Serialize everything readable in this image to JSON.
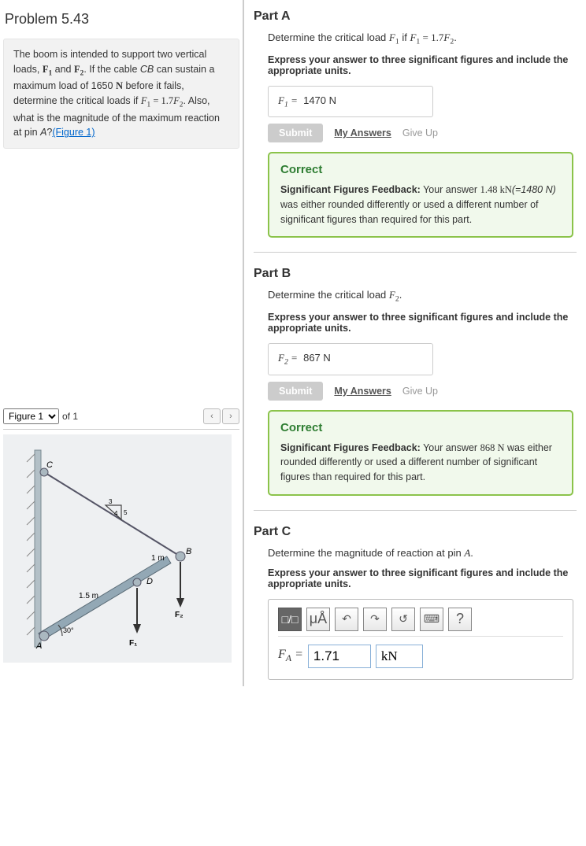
{
  "problem": {
    "title": "Problem 5.43",
    "description_html": "The boom is intended to support two vertical loads, <b class='serif'>F<span class='sub'>1</span></b> and <b class='serif'>F<span class='sub'>2</span></b>. If the cable <i>CB</i> can sustain a maximum load of 1650 <b class='serif'>N</b> before it fails, determine the critical loads if <span class='serif'><i>F</i><span class='sub'>1</span> = 1.7<i>F</i><span class='sub'>2</span></span>. Also, what is the magnitude of the maximum reaction at pin <i>A</i>?",
    "figure_link": "(Figure 1)"
  },
  "figure_selector": {
    "label": "Figure 1",
    "of_text": "of 1"
  },
  "figure": {
    "labels": {
      "C": "C",
      "A": "A",
      "B": "B",
      "D": "D",
      "one_m": "1 m",
      "one5_m": "1.5 m",
      "ang": "30°",
      "F1": "F₁",
      "F2": "F₂",
      "t3": "3",
      "t4": "4",
      "t5": "5"
    }
  },
  "partA": {
    "title": "Part A",
    "sub_html": "Determine the critical load <span class='serif'><i>F</i><span class='sub'>1</span></span> if <span class='serif'><i>F</i><span class='sub'>1</span> = 1.7<i>F</i><span class='sub'>2</span></span>.",
    "instr": "Express your answer to three significant figures and include the appropriate units.",
    "var_html": "<i>F</i><span class='sub'>1</span> =",
    "value": "1470 N",
    "submit": "Submit",
    "myans": "My Answers",
    "giveup": "Give Up",
    "fb_title": "Correct",
    "fb_body_html": "<b>Significant Figures Feedback:</b> Your answer <span class='serif'>1.48 kN</span><i>(=1480 N)</i> was either rounded differently or used a different number of significant figures than required for this part."
  },
  "partB": {
    "title": "Part B",
    "sub_html": "Determine the critical load <span class='serif'><i>F</i><span class='sub'>2</span></span>.",
    "instr": "Express your answer to three significant figures and include the appropriate units.",
    "var_html": "<i>F</i><span class='sub'>2</span> =",
    "value": "867 N",
    "submit": "Submit",
    "myans": "My Answers",
    "giveup": "Give Up",
    "fb_title": "Correct",
    "fb_body_html": "<b>Significant Figures Feedback:</b> Your answer <span class='serif'>868 N</span> was either rounded differently or used a different number of significant figures than required for this part."
  },
  "partC": {
    "title": "Part C",
    "sub_html": "Determine the magnitude of reaction at pin <span class='serif'><i>A</i></span>.",
    "instr": "Express your answer to three significant figures and include the appropriate units.",
    "var_html": "<i>F<span class='sub'>A</span></i> =",
    "value": "1.71",
    "unit": "kN",
    "toolbar": {
      "tpl": "□/□",
      "mu": "μÅ",
      "undo": "↶",
      "redo": "↷",
      "reset": "↺",
      "kbd": "⌨",
      "help": "?"
    }
  }
}
